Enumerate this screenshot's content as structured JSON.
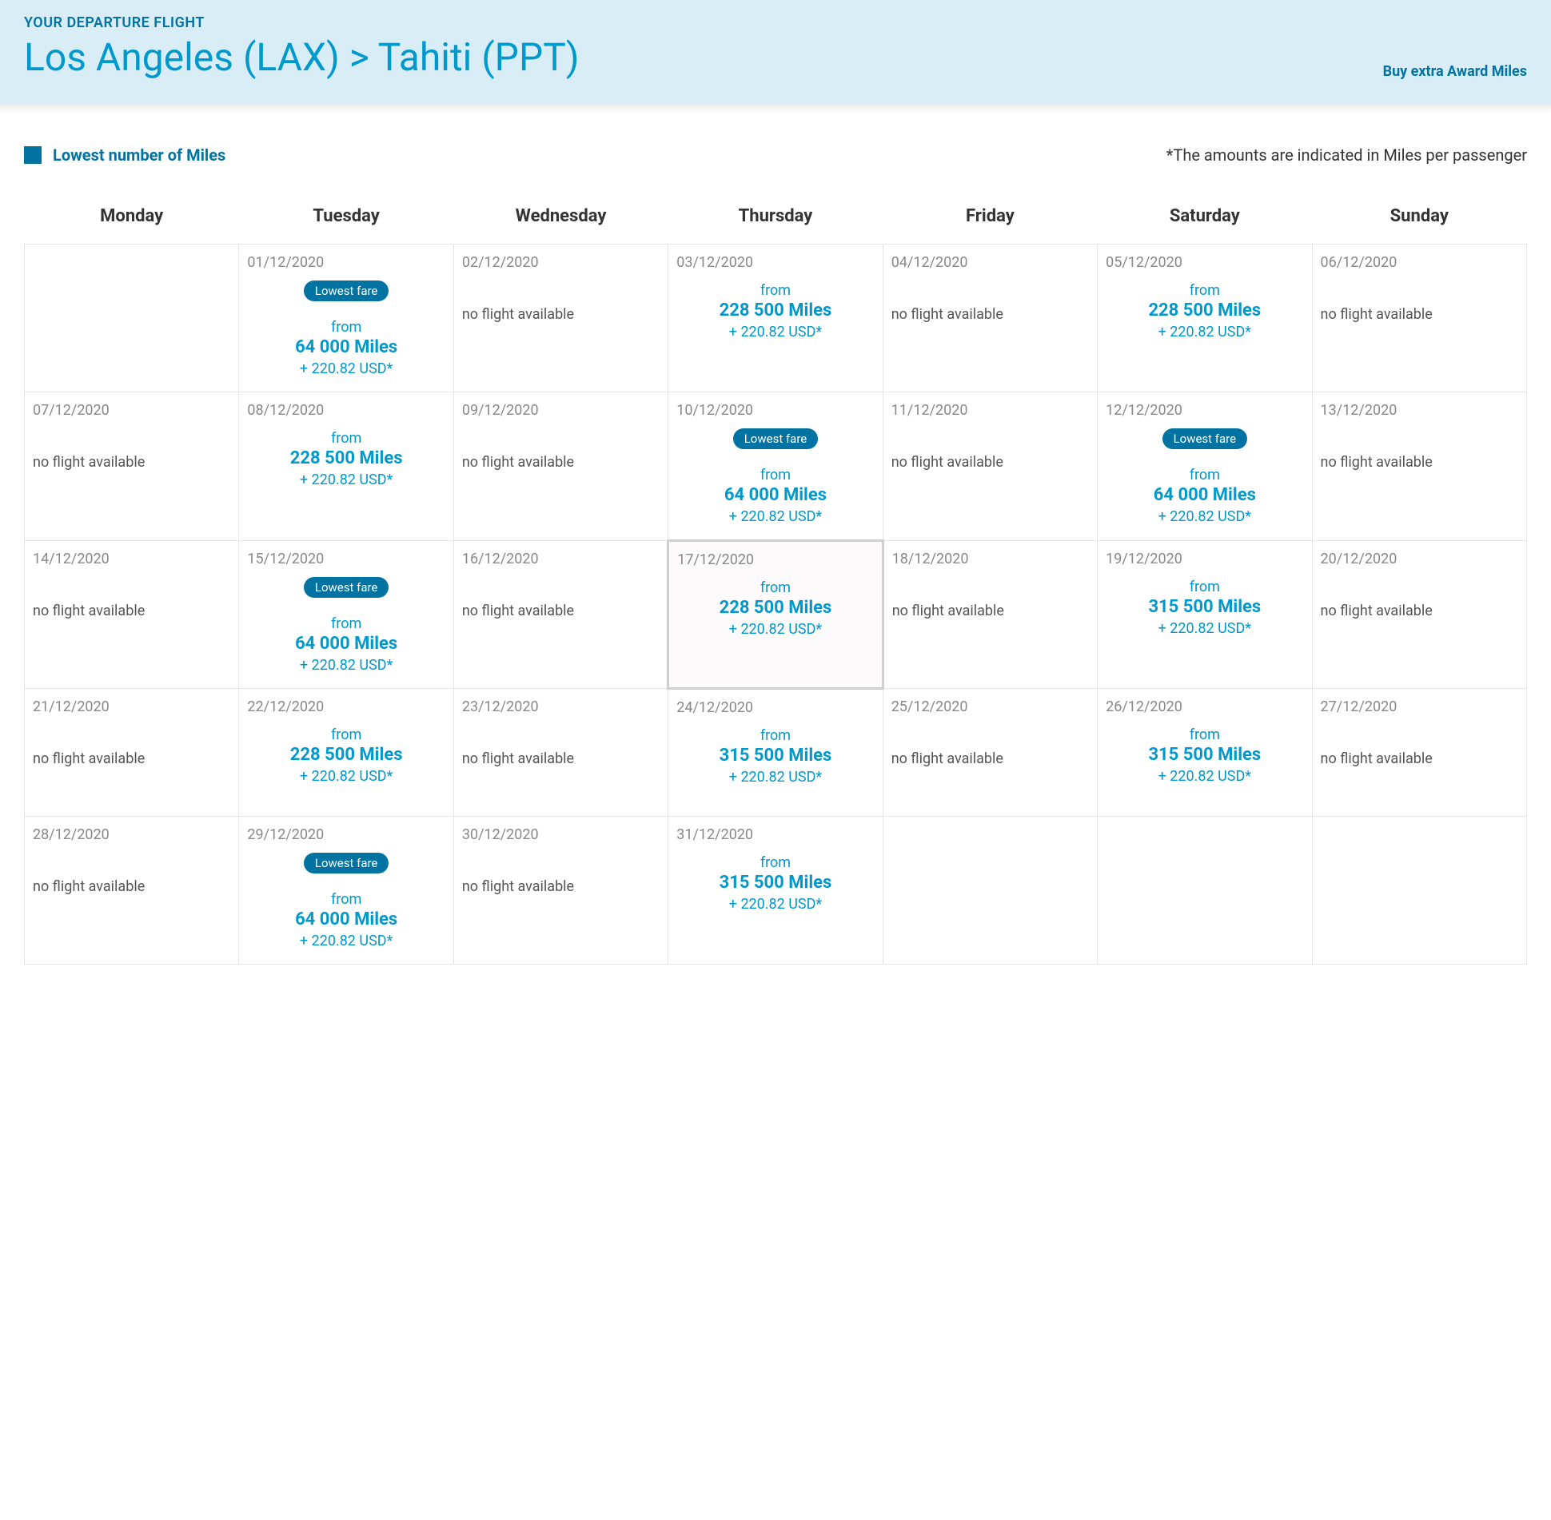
{
  "header": {
    "subtitle": "YOUR DEPARTURE FLIGHT",
    "title": "Los Angeles (LAX) > Tahiti (PPT)",
    "buy_miles": "Buy extra Award Miles"
  },
  "legend": {
    "square_color": "#0073a2",
    "label": "Lowest number of Miles",
    "note": "*The amounts are indicated in Miles per passenger"
  },
  "labels": {
    "from": "from",
    "miles_suffix": " Miles",
    "lowest_fare": "Lowest fare",
    "no_flight": "no flight available"
  },
  "days": [
    "Monday",
    "Tuesday",
    "Wednesday",
    "Thursday",
    "Friday",
    "Saturday",
    "Sunday"
  ],
  "weeks": [
    [
      {
        "blank": true
      },
      {
        "date": "01/12/2020",
        "lowest": true,
        "miles": "64 000",
        "surcharge": "+ 220.82 USD*"
      },
      {
        "date": "02/12/2020",
        "no_flight": true
      },
      {
        "date": "03/12/2020",
        "miles": "228 500",
        "surcharge": "+ 220.82 USD*"
      },
      {
        "date": "04/12/2020",
        "no_flight": true
      },
      {
        "date": "05/12/2020",
        "miles": "228 500",
        "surcharge": "+ 220.82 USD*"
      },
      {
        "date": "06/12/2020",
        "no_flight": true
      }
    ],
    [
      {
        "date": "07/12/2020",
        "no_flight": true
      },
      {
        "date": "08/12/2020",
        "miles": "228 500",
        "surcharge": "+ 220.82 USD*"
      },
      {
        "date": "09/12/2020",
        "no_flight": true
      },
      {
        "date": "10/12/2020",
        "lowest": true,
        "miles": "64 000",
        "surcharge": "+ 220.82 USD*"
      },
      {
        "date": "11/12/2020",
        "no_flight": true
      },
      {
        "date": "12/12/2020",
        "lowest": true,
        "miles": "64 000",
        "surcharge": "+ 220.82 USD*"
      },
      {
        "date": "13/12/2020",
        "no_flight": true
      }
    ],
    [
      {
        "date": "14/12/2020",
        "no_flight": true
      },
      {
        "date": "15/12/2020",
        "lowest": true,
        "miles": "64 000",
        "surcharge": "+ 220.82 USD*"
      },
      {
        "date": "16/12/2020",
        "no_flight": true
      },
      {
        "date": "17/12/2020",
        "selected": true,
        "miles": "228 500",
        "surcharge": "+ 220.82 USD*"
      },
      {
        "date": "18/12/2020",
        "no_flight": true
      },
      {
        "date": "19/12/2020",
        "miles": "315 500",
        "surcharge": "+ 220.82 USD*"
      },
      {
        "date": "20/12/2020",
        "no_flight": true
      }
    ],
    [
      {
        "date": "21/12/2020",
        "no_flight": true
      },
      {
        "date": "22/12/2020",
        "miles": "228 500",
        "surcharge": "+ 220.82 USD*"
      },
      {
        "date": "23/12/2020",
        "no_flight": true
      },
      {
        "date": "24/12/2020",
        "miles": "315 500",
        "surcharge": "+ 220.82 USD*"
      },
      {
        "date": "25/12/2020",
        "no_flight": true
      },
      {
        "date": "26/12/2020",
        "miles": "315 500",
        "surcharge": "+ 220.82 USD*"
      },
      {
        "date": "27/12/2020",
        "no_flight": true
      }
    ],
    [
      {
        "date": "28/12/2020",
        "no_flight": true
      },
      {
        "date": "29/12/2020",
        "lowest": true,
        "miles": "64 000",
        "surcharge": "+ 220.82 USD*"
      },
      {
        "date": "30/12/2020",
        "no_flight": true
      },
      {
        "date": "31/12/2020",
        "miles": "315 500",
        "surcharge": "+ 220.82 USD*"
      },
      {
        "blank": true
      },
      {
        "blank": true
      },
      {
        "blank": true
      }
    ]
  ],
  "colors": {
    "header_bg": "#d9edf7",
    "accent": "#0099cc",
    "dark_accent": "#0073a2",
    "border": "#e5e5e5",
    "muted": "#888888"
  }
}
